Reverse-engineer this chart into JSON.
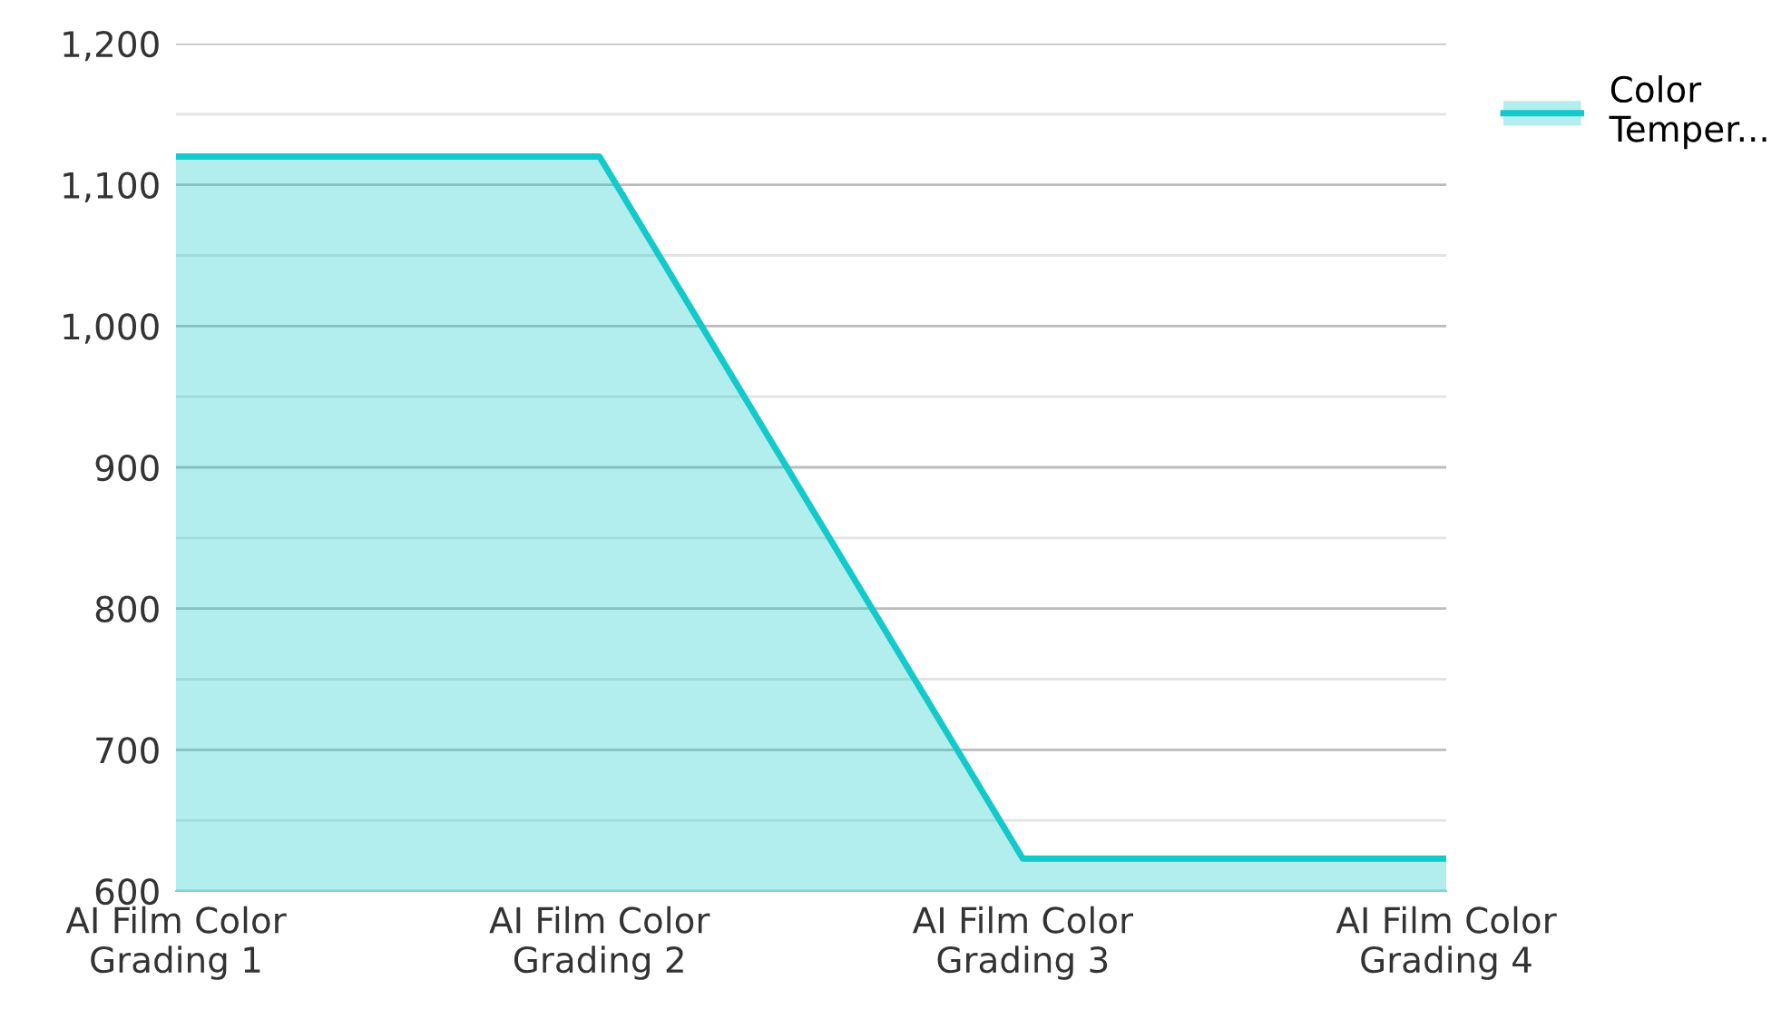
{
  "chart_data": {
    "type": "area",
    "categories": [
      "AI Film Color\nGrading 1",
      "AI Film Color\nGrading 2",
      "AI Film Color\nGrading 3",
      "AI Film Color\nGrading 4"
    ],
    "series": [
      {
        "name": "Color\nTemper...",
        "color": "#14c9c9",
        "values": [
          1120,
          1120,
          623,
          623
        ]
      }
    ],
    "ylim": [
      600,
      1200
    ],
    "yticks": [
      600,
      {
        "value": 650,
        "label": null
      },
      700,
      {
        "value": 750,
        "label": null
      },
      800,
      {
        "value": 850,
        "label": null
      },
      900,
      {
        "value": 950,
        "label": null
      },
      {
        "value": 1000,
        "label": "1,000"
      },
      {
        "value": 1050,
        "label": null
      },
      {
        "value": 1100,
        "label": "1,100"
      },
      {
        "value": 1150,
        "label": null
      },
      {
        "value": 1200,
        "label": "1,200"
      }
    ],
    "grid": "y",
    "legend": "top right"
  }
}
